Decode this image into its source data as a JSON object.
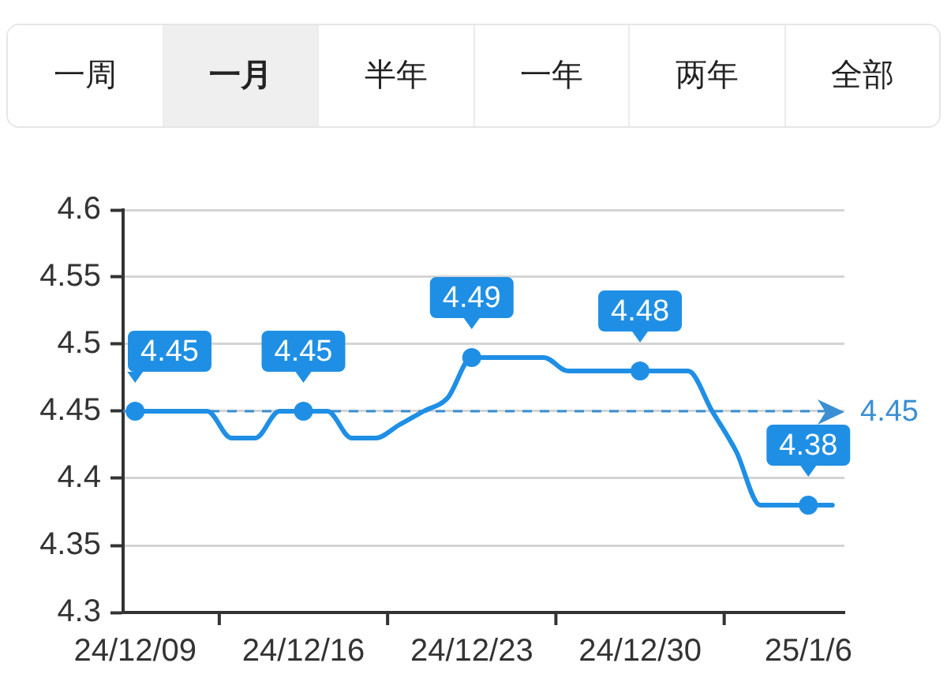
{
  "chart_data": [
    {
      "type": "other",
      "annotations": [
        "一周",
        "一月",
        "半年",
        "一年",
        "两年",
        "全部"
      ]
    },
    {
      "type": "line",
      "categories": [
        "24/12/09",
        null,
        null,
        null,
        null,
        null,
        null,
        "24/12/16",
        null,
        null,
        null,
        null,
        null,
        null,
        "24/12/23",
        null,
        null,
        null,
        null,
        null,
        null,
        "24/12/30",
        null,
        null,
        null,
        null,
        null,
        null,
        "25/1/6",
        null
      ],
      "values": [
        4.45,
        4.45,
        4.45,
        4.45,
        4.43,
        4.43,
        4.45,
        4.45,
        4.45,
        4.43,
        4.43,
        4.44,
        4.45,
        4.46,
        4.49,
        4.49,
        4.49,
        4.49,
        4.48,
        4.48,
        4.48,
        4.48,
        4.48,
        4.48,
        4.45,
        4.42,
        4.38,
        4.38,
        4.38,
        4.38
      ],
      "value_labels": [
        "4.45",
        null,
        null,
        null,
        null,
        null,
        null,
        "4.45",
        null,
        null,
        null,
        null,
        null,
        null,
        "4.49",
        null,
        null,
        null,
        null,
        null,
        null,
        "4.48",
        null,
        null,
        null,
        null,
        null,
        null,
        "4.38",
        null
      ],
      "color": "#1f8fe5",
      "ylim": [
        4.3,
        4.6
      ],
      "yticks": [
        4.3,
        4.35,
        4.4,
        4.45,
        4.5,
        4.55,
        4.6
      ],
      "grid": "y",
      "legend": false,
      "line_style": "solid",
      "ref_lines": [
        {
          "axis": "y",
          "value": 4.45,
          "label": "4.45",
          "color": "#3a8fd2",
          "line_style": "dashed"
        }
      ]
    }
  ]
}
